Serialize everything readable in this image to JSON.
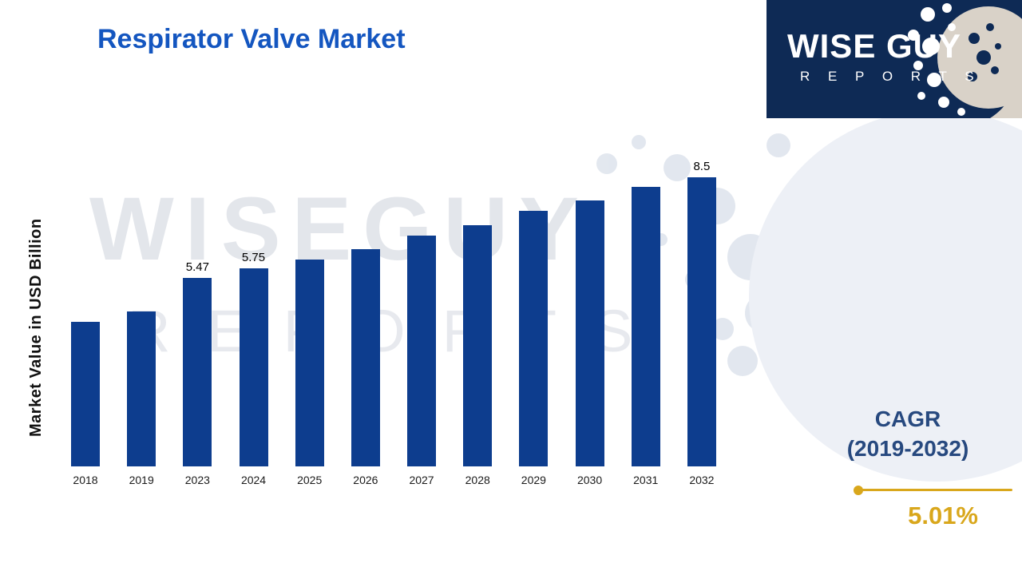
{
  "title": "Respirator Valve Market",
  "logo": {
    "line1": "WISE GUY",
    "line2": "R E P O R T S"
  },
  "watermark": {
    "line1": "WISEGUY",
    "line2": "REPORTS"
  },
  "cagr": {
    "line1": "CAGR",
    "line2": "(2019-2032)",
    "value": "5.01%"
  },
  "colors": {
    "bar": "#0d3d8e",
    "title_blue": "#1456c0",
    "logo_navy": "#0e2a55",
    "cagr_navy": "#27497f",
    "accent_gold": "#d9a71c"
  },
  "chart_data": {
    "type": "bar",
    "title": "Respirator Valve Market",
    "xlabel": "",
    "ylabel": "Market Value in USD Billion",
    "categories": [
      "2018",
      "2019",
      "2023",
      "2024",
      "2025",
      "2026",
      "2027",
      "2028",
      "2029",
      "2030",
      "2031",
      "2032"
    ],
    "values": [
      4.2,
      4.5,
      5.47,
      5.75,
      6.0,
      6.3,
      6.7,
      7.0,
      7.4,
      7.7,
      8.1,
      8.5
    ],
    "value_labels": {
      "2023": "5.47",
      "2024": "5.75",
      "2032": "8.5"
    },
    "ylim": [
      0,
      9
    ],
    "grid": false,
    "legend": false
  }
}
